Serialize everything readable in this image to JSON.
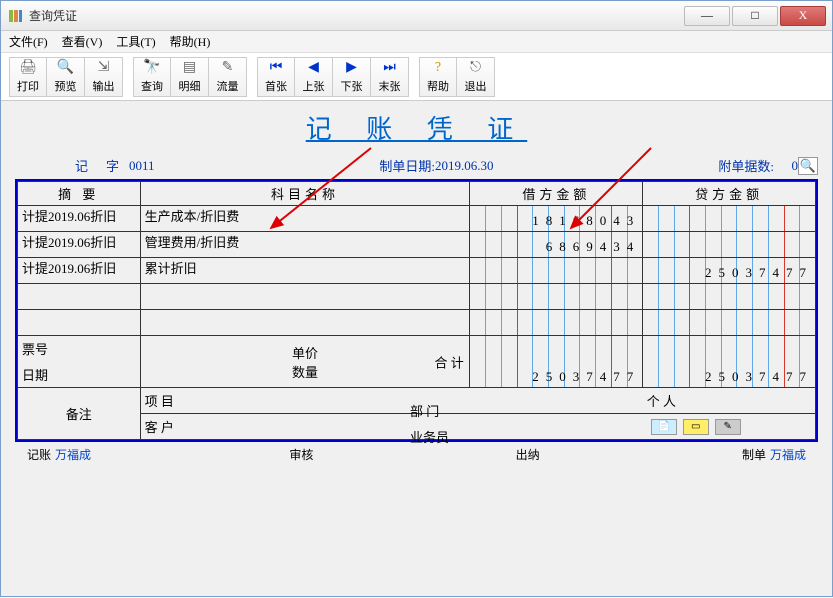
{
  "window": {
    "title": "查询凭证",
    "btn_min": "—",
    "btn_max": "□",
    "btn_close": "X"
  },
  "menu": {
    "file": "文件(F)",
    "view": "查看(V)",
    "tools": "工具(T)",
    "help": "帮助(H)"
  },
  "toolbar": {
    "print": "打印",
    "preview": "预览",
    "output": "输出",
    "query": "查询",
    "detail": "明细",
    "flow": "流量",
    "first": "首张",
    "prev": "上张",
    "next": "下张",
    "last": "末张",
    "help": "帮助",
    "exit": "退出"
  },
  "voucher": {
    "title": "记 账 凭 证",
    "rec_label": "记",
    "word_label": "字",
    "number": "0011",
    "date_label": "制单日期:",
    "date": "2019.06.30",
    "attach_label": "附单据数:",
    "attach_value": "0",
    "zoom_icon": "🔍"
  },
  "grid": {
    "headers": {
      "summary": "摘 要",
      "subject": "科目名称",
      "debit": "借方金额",
      "credit": "贷方金额"
    },
    "rows": [
      {
        "summary": "计提2019.06折旧",
        "subject": "生产成本/折旧费",
        "debit": "18168043",
        "credit": ""
      },
      {
        "summary": "计提2019.06折旧",
        "subject": "管理费用/折旧费",
        "debit": "6869434",
        "credit": ""
      },
      {
        "summary": "计提2019.06折旧",
        "subject": "累计折旧",
        "debit": "",
        "credit": "25037477"
      },
      {
        "summary": "",
        "subject": "",
        "debit": "",
        "credit": ""
      },
      {
        "summary": "",
        "subject": "",
        "debit": "",
        "credit": ""
      }
    ],
    "ticket_label": "票号",
    "date_label2": "日期",
    "price_label": "单价",
    "qty_label": "数量",
    "total_label": "合 计",
    "total_debit": "25037477",
    "total_credit": "25037477",
    "remark_label": "备注",
    "project_label": "项 目",
    "dept_label": "部 门",
    "person_label": "个 人",
    "customer_label": "客 户",
    "biz_label": "业务员"
  },
  "signatures": {
    "book": "记账",
    "book_name": "万福成",
    "audit": "审核",
    "audit_name": "",
    "cashier": "出纳",
    "cashier_name": "",
    "maker": "制单",
    "maker_name": "万福成"
  },
  "colors": {
    "frame": "#0000cc",
    "line_blue": "#5fa9e6",
    "line_red": "#d63a2e",
    "title_blue": "#0066cc",
    "text_blue": "#0044cc"
  }
}
